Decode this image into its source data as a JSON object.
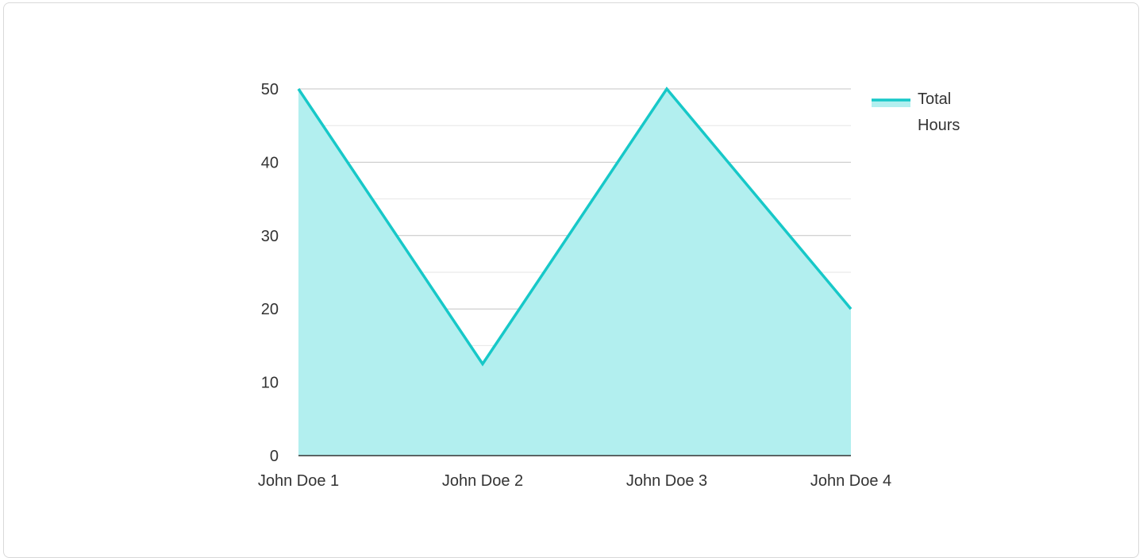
{
  "chart_data": {
    "type": "area",
    "categories": [
      "John Doe 1",
      "John Doe 2",
      "John Doe 3",
      "John Doe 4"
    ],
    "series": [
      {
        "name": "Total Hours",
        "values": [
          50,
          12.5,
          50,
          20
        ]
      }
    ],
    "ylim": [
      0,
      50
    ],
    "yticks": [
      0,
      10,
      20,
      30,
      40,
      50
    ],
    "grid": true,
    "legend_position": "top-right",
    "colors": {
      "line": "#17c8c8",
      "fill": "#b2efef",
      "grid_major": "#c4c4c4",
      "grid_minor": "#e6e6e6",
      "axis": "#333333"
    }
  }
}
